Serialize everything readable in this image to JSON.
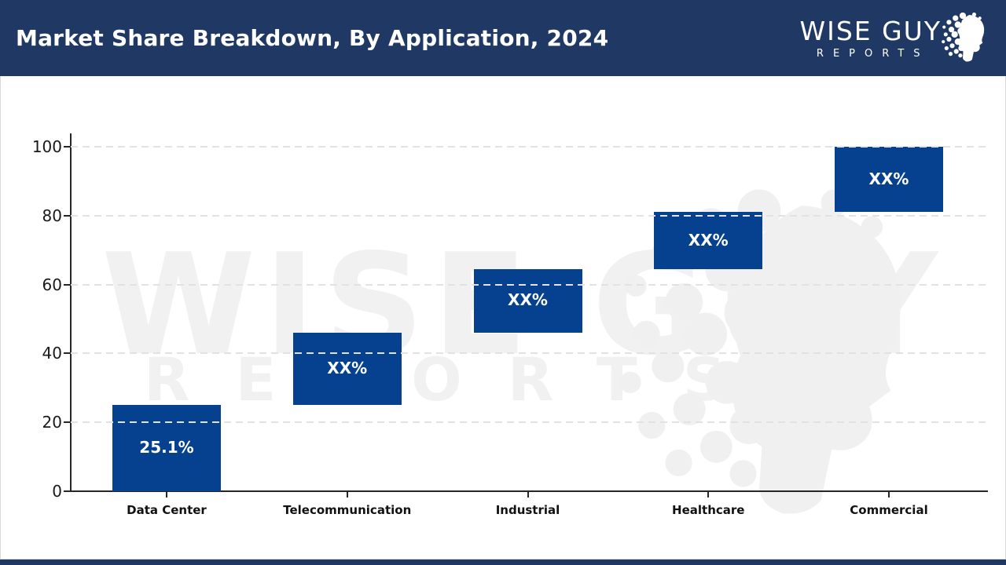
{
  "header": {
    "title": "Market Share Breakdown, By Application, 2024",
    "logo": {
      "brand": "WISE GUY",
      "sub": "REPORTS"
    }
  },
  "watermark": {
    "line1": "WISE GUY",
    "line2": "REPORTS"
  },
  "chart_data": {
    "type": "bar",
    "subtype": "waterfall",
    "title": "Market Share Breakdown, By Application, 2024",
    "categories": [
      "Data Center",
      "Telecommunication",
      "Industrial",
      "Healthcare",
      "Commercial"
    ],
    "segments": [
      {
        "label": "25.1%",
        "start": 0,
        "end": 25.1
      },
      {
        "label": "XX%",
        "start": 25.1,
        "end": 46.0
      },
      {
        "label": "XX%",
        "start": 46.0,
        "end": 64.5
      },
      {
        "label": "XX%",
        "start": 64.5,
        "end": 81.0
      },
      {
        "label": "XX%",
        "start": 81.0,
        "end": 100
      }
    ],
    "xlabel": "",
    "ylabel": "",
    "ylim": [
      0,
      100
    ],
    "yticks": [
      0,
      20,
      40,
      60,
      80,
      100
    ],
    "grid": "horizontal-dashed",
    "legend": "none"
  },
  "colors": {
    "header_bg": "#1f3864",
    "footer_bg": "#1f3864",
    "header_text": "#ffffff",
    "bar": "#05418f",
    "bar_label": "#ffffff",
    "axis": "#262626",
    "grid": "#e2e2e2",
    "watermark": "#f1f1f1"
  }
}
